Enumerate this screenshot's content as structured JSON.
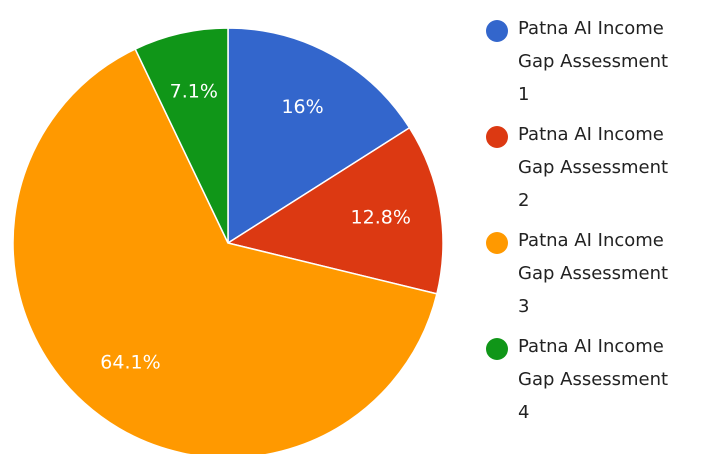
{
  "chart_data": {
    "type": "pie",
    "categories": [
      "Patna AI Income Gap Assessment 1",
      "Patna AI Income Gap Assessment 2",
      "Patna AI Income Gap Assessment 3",
      "Patna AI Income Gap Assessment 4"
    ],
    "values": [
      16,
      12.8,
      64.1,
      7.1
    ],
    "value_labels": [
      "16%",
      "12.8%",
      "64.1%",
      "7.1%"
    ],
    "colors": [
      "#3366cc",
      "#dc3912",
      "#ff9900",
      "#109618"
    ],
    "legend": "right"
  }
}
